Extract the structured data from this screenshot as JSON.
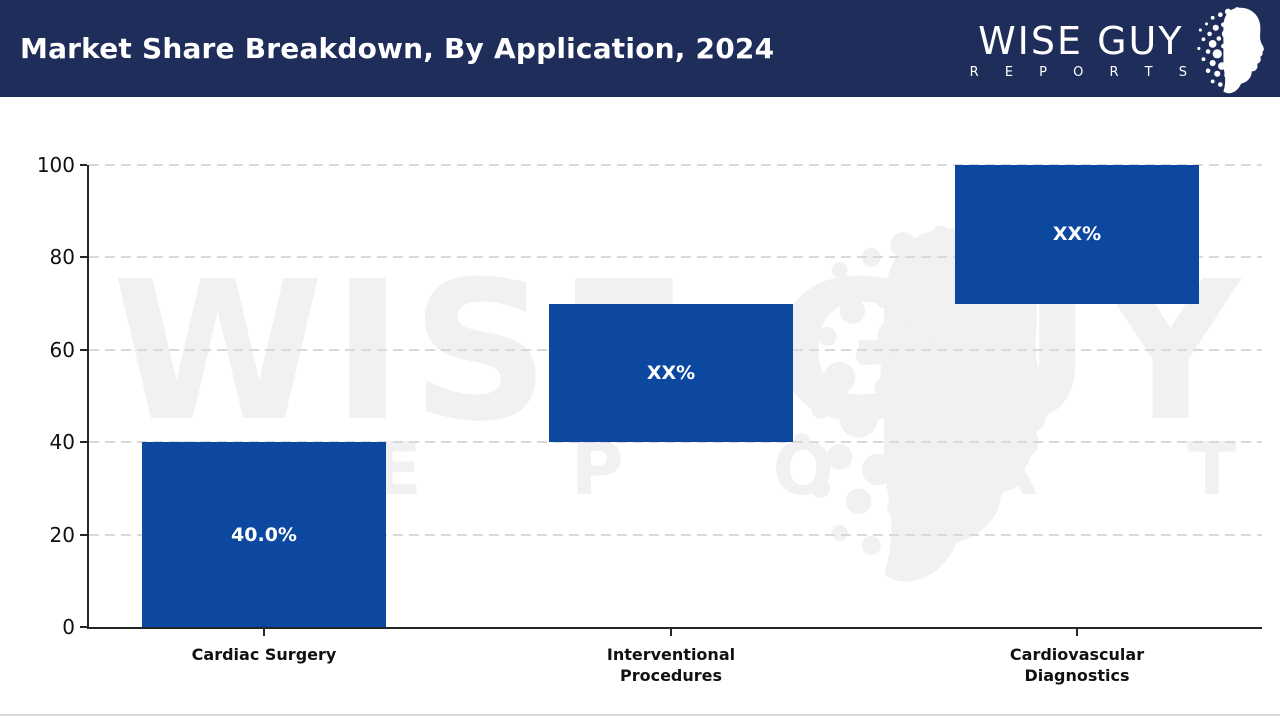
{
  "header": {
    "title": "Market Share Breakdown, By Application, 2024",
    "bg_color": "#1f2d5a",
    "logo": {
      "wordmark": "WISE GUY",
      "subtext": "REPORTS"
    }
  },
  "watermark": {
    "wordmark": "WISE GUY",
    "subtext": "REPORTS"
  },
  "chart_data": {
    "type": "bar",
    "subtype": "waterfall",
    "title": "Market Share Breakdown, By Application, 2024",
    "categories": [
      "Cardiac Surgery",
      "Interventional Procedures",
      "Cardiovascular Diagnostics"
    ],
    "segments": [
      {
        "start": 0,
        "end": 40,
        "label": "40.0%"
      },
      {
        "start": 40,
        "end": 70,
        "label": "XX%"
      },
      {
        "start": 70,
        "end": 100,
        "label": "XX%"
      }
    ],
    "values_shown": [
      "40.0%",
      "XX%",
      "XX%"
    ],
    "xlabel": "",
    "ylabel": "",
    "ylim": [
      0,
      100
    ],
    "yticks": [
      0,
      20,
      40,
      60,
      80,
      100
    ],
    "grid": "horizontal dashed",
    "legend": "none",
    "bar_color": "#0c47a0",
    "bar_label_color": "#ffffff",
    "axis_color": "#262626",
    "grid_color": "#d9d9d9"
  }
}
